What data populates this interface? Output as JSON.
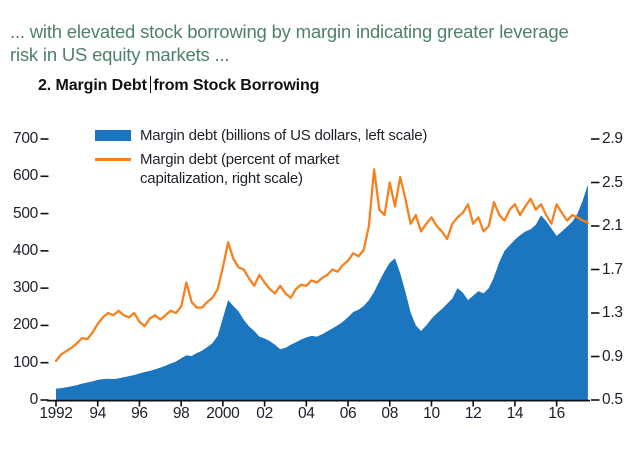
{
  "heading": {
    "color": "#4f8169",
    "lines": [
      "... with elevated stock borrowing by margin indicating greater leverage",
      "risk in US equity markets ..."
    ]
  },
  "subtitle": {
    "prefix": "2. Margin Debt",
    "suffix": "from Stock Borrowing"
  },
  "legend": {
    "entries": [
      {
        "label": "Margin debt (billions of US dollars, left scale)",
        "color": "#1b75bf",
        "swatch": "rect"
      },
      {
        "label": "Margin debt (percent of market capitalization, right scale)",
        "color": "#f5821f",
        "swatch": "line"
      }
    ]
  },
  "colors": {
    "area_blue": "#1b75bf",
    "line_orange": "#f5821f",
    "axis_black": "#0f1014",
    "tick_text": "#1b1f2b"
  },
  "chart_data": {
    "type": "area",
    "title": "2. Margin Debt from Stock Borrowing",
    "x_start": 1992.0,
    "x_step_years": 0.25,
    "x_axis": {
      "min": 1992.0,
      "max": 2017.6,
      "tick_years": [
        1992,
        1994,
        1996,
        1998,
        2000,
        2002,
        2004,
        2006,
        2008,
        2010,
        2012,
        2014,
        2016
      ],
      "tick_labels": [
        "1992",
        "94",
        "96",
        "98",
        "2000",
        "02",
        "04",
        "06",
        "08",
        "10",
        "12",
        "14",
        "16"
      ]
    },
    "left_axis": {
      "label": "billions of US dollars",
      "min": 0,
      "max": 700,
      "tick_values": [
        0,
        100,
        200,
        300,
        400,
        500,
        600,
        700
      ],
      "tick_labels": [
        "0",
        "100",
        "200",
        "300",
        "400",
        "500",
        "600",
        "700"
      ]
    },
    "right_axis": {
      "label": "percent of market capitalization",
      "min": 0.5,
      "max": 2.9,
      "tick_values": [
        0.5,
        0.9,
        1.3,
        1.7,
        2.1,
        2.5,
        2.9
      ],
      "tick_labels": [
        "0.5",
        "0.9",
        "1.3",
        "1.7",
        "2.1",
        "2.5",
        "2.9"
      ]
    },
    "grid": false,
    "legend_position": "top-left-inside",
    "series": [
      {
        "name": "Margin debt (billions of US dollars, left scale)",
        "type": "area",
        "axis": "left",
        "color": "#1b75bf",
        "values": [
          30,
          32,
          34,
          37,
          40,
          44,
          47,
          50,
          54,
          56,
          57,
          56,
          58,
          61,
          64,
          67,
          71,
          75,
          78,
          82,
          87,
          92,
          98,
          103,
          112,
          120,
          118,
          126,
          132,
          142,
          152,
          172,
          220,
          268,
          252,
          238,
          215,
          198,
          185,
          170,
          165,
          158,
          148,
          136,
          140,
          148,
          155,
          162,
          168,
          172,
          170,
          176,
          184,
          192,
          200,
          210,
          222,
          236,
          242,
          252,
          268,
          290,
          318,
          345,
          368,
          380,
          340,
          290,
          235,
          200,
          185,
          200,
          218,
          232,
          244,
          258,
          272,
          300,
          288,
          268,
          280,
          292,
          286,
          300,
          330,
          370,
          400,
          415,
          430,
          442,
          452,
          458,
          470,
          495,
          480,
          460,
          440,
          452,
          465,
          478,
          500,
          535,
          578
        ]
      },
      {
        "name": "Margin debt (percent of market capitalization, right scale)",
        "type": "line",
        "axis": "right",
        "color": "#f5821f",
        "values": [
          0.86,
          0.92,
          0.95,
          0.98,
          1.02,
          1.07,
          1.06,
          1.12,
          1.2,
          1.26,
          1.3,
          1.28,
          1.32,
          1.28,
          1.26,
          1.3,
          1.22,
          1.18,
          1.25,
          1.28,
          1.24,
          1.28,
          1.32,
          1.3,
          1.36,
          1.58,
          1.4,
          1.35,
          1.35,
          1.4,
          1.44,
          1.52,
          1.72,
          1.95,
          1.8,
          1.72,
          1.7,
          1.62,
          1.55,
          1.65,
          1.58,
          1.52,
          1.48,
          1.55,
          1.48,
          1.44,
          1.52,
          1.56,
          1.55,
          1.6,
          1.58,
          1.62,
          1.65,
          1.7,
          1.68,
          1.74,
          1.78,
          1.85,
          1.82,
          1.88,
          2.1,
          2.62,
          2.25,
          2.2,
          2.5,
          2.28,
          2.55,
          2.35,
          2.12,
          2.2,
          2.05,
          2.12,
          2.18,
          2.1,
          2.05,
          1.98,
          2.12,
          2.18,
          2.22,
          2.3,
          2.12,
          2.18,
          2.05,
          2.1,
          2.32,
          2.2,
          2.15,
          2.25,
          2.3,
          2.2,
          2.28,
          2.35,
          2.25,
          2.3,
          2.2,
          2.12,
          2.3,
          2.22,
          2.15,
          2.2,
          2.18,
          2.15,
          2.13
        ]
      }
    ]
  }
}
